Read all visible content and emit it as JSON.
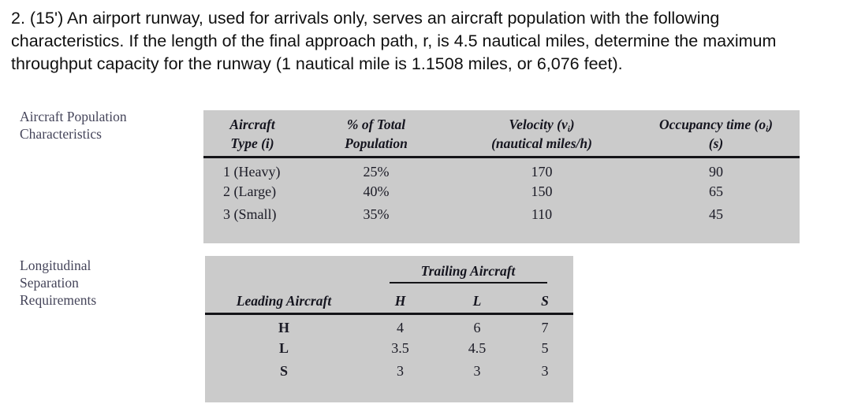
{
  "question": {
    "lines": [
      "2. (15') An airport runway, used for arrivals only, serves an aircraft population with the following",
      "characteristics. If the length of the final approach path, r, is 4.5 nautical miles, determine the maximum",
      "throughput capacity for the runway (1 nautical mile is 1.1508 miles, or 6,076 feet)."
    ]
  },
  "population_table": {
    "side_label_lines": [
      "Aircraft Population",
      "Characteristics"
    ],
    "columns": [
      {
        "l1pre": "Aircraft",
        "l1sub": "",
        "l1post": "",
        "l2": "Type (i)"
      },
      {
        "l1pre": "% of Total",
        "l1sub": "",
        "l1post": "",
        "l2": "Population"
      },
      {
        "l1pre": "Velocity (v",
        "l1sub": "i",
        "l1post": ")",
        "l2": "(nautical miles/h)"
      },
      {
        "l1pre": "Occupancy time (o",
        "l1sub": "i",
        "l1post": ")",
        "l2": "(s)"
      }
    ],
    "rows": [
      [
        "1 (Heavy)",
        "25%",
        "170",
        "90"
      ],
      [
        "2 (Large)",
        "40%",
        "150",
        "65"
      ],
      [
        "3 (Small)",
        "35%",
        "110",
        "45"
      ]
    ]
  },
  "separation_table": {
    "side_label_lines": [
      "Longitudinal",
      "Separation",
      "Requirements"
    ],
    "span_header": "Trailing Aircraft",
    "col_headers": [
      "Leading Aircraft",
      "H",
      "L",
      "S"
    ],
    "rows": [
      [
        "H",
        "4",
        "6",
        "7"
      ],
      [
        "L",
        "3.5",
        "4.5",
        "5"
      ],
      [
        "S",
        "3",
        "3",
        "3"
      ]
    ]
  },
  "colors": {
    "table_background": "#cbcbcb",
    "rule": "#141418",
    "body_text": "#101010",
    "side_label_text": "#45455a"
  }
}
